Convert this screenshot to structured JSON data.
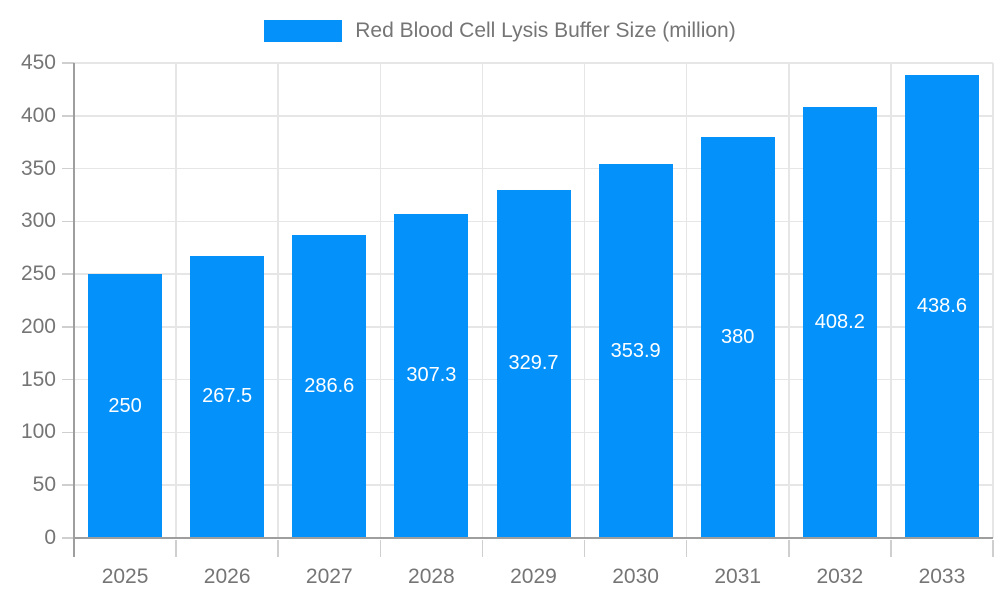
{
  "chart_data": {
    "type": "bar",
    "title": "Red Blood Cell Lysis Buffer Size (million)",
    "categories": [
      "2025",
      "2026",
      "2027",
      "2028",
      "2029",
      "2030",
      "2031",
      "2032",
      "2033"
    ],
    "values": [
      250,
      267.5,
      286.6,
      307.3,
      329.7,
      353.9,
      380,
      408.2,
      438.6
    ],
    "xlabel": "",
    "ylabel": "",
    "ylim": [
      0,
      450
    ],
    "ytick_step": 50,
    "grid": true,
    "legend_position": "top",
    "bar_color": "#0591fa",
    "value_label_color": "#ffffff",
    "axis_text_color": "#757575",
    "gridline_color": "#e6e6e6",
    "axis_line_color": "#9e9e9e"
  }
}
